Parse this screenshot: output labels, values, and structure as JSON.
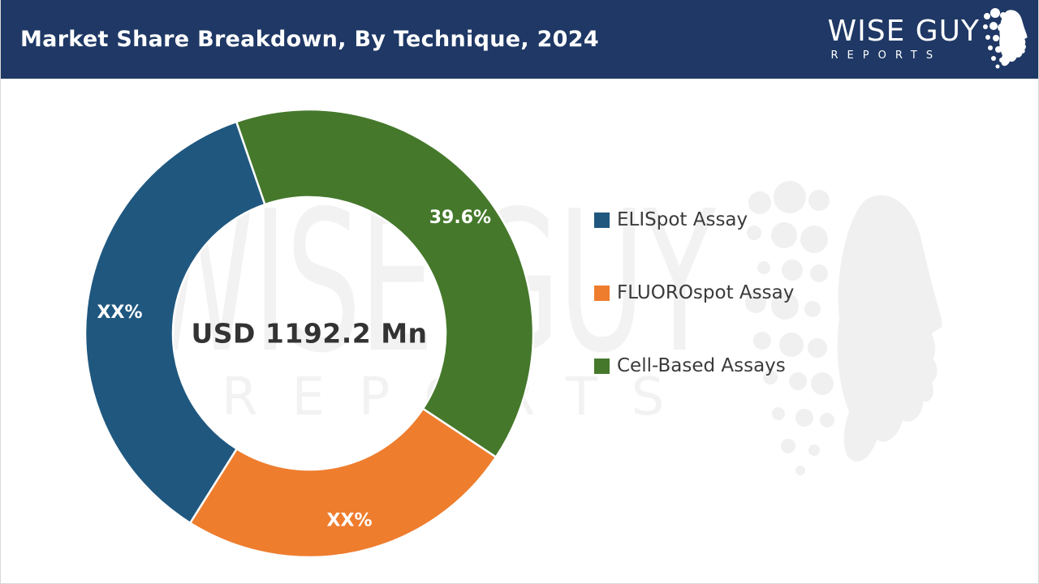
{
  "header": {
    "title": "Market Share Breakdown, By Technique, 2024",
    "logo": {
      "line1": "WISE GUY",
      "line2": "REPORTS"
    }
  },
  "watermark": {
    "line1": "WISE GUY",
    "line2": "REPORTS"
  },
  "chart_data": {
    "type": "donut",
    "title": "Market Share Breakdown, By Technique, 2024",
    "center_label": "USD 1192.2 Mn",
    "start_angle_deg": -19,
    "legend_position": "right",
    "segments": [
      {
        "name": "Cell-Based Assays",
        "slice_label": "39.6%",
        "pct": 39.6,
        "color": "#45782B"
      },
      {
        "name": "FLUOROspot Assay",
        "slice_label": "XX%",
        "pct": 24.6,
        "color": "#EE7D2E"
      },
      {
        "name": "ELISpot Assay",
        "slice_label": "XX%",
        "pct": 35.8,
        "color": "#1F577F"
      }
    ],
    "legend": [
      {
        "label": "ELISpot Assay",
        "color": "#1F577F"
      },
      {
        "label": "FLUOROspot Assay",
        "color": "#EE7D2E"
      },
      {
        "label": "Cell-Based Assays",
        "color": "#45782B"
      }
    ]
  },
  "colors": {
    "header_bg": "#1F3865",
    "center_text": "#333333",
    "legend_text": "#3A3A3A",
    "slice_label_text": "#FFFFFF",
    "watermark": "#F2F2F2"
  }
}
